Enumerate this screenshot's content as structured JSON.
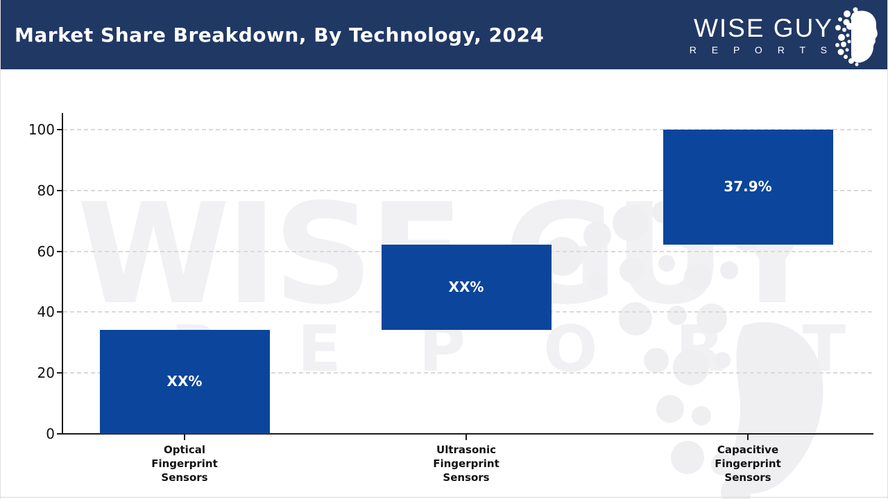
{
  "header": {
    "title": "Market Share Breakdown, By Technology, 2024",
    "logo": {
      "line1": "WISE GUY",
      "line2": "R E P O R T S"
    }
  },
  "watermark": {
    "line1": "WISE GUY",
    "line2": "R E P O R T S"
  },
  "colors": {
    "header_bg": "#203864",
    "bar": "#0b459c",
    "bar_label": "#ffffff",
    "grid": "#d9d9d9",
    "watermark": "#f1f1f4"
  },
  "chart_data": {
    "type": "bar",
    "subtype": "stacked-waterfall",
    "title": "Market Share Breakdown, By Technology, 2024",
    "xlabel": "",
    "ylabel": "",
    "ylim": [
      0,
      100
    ],
    "yticks": [
      0,
      20,
      40,
      60,
      80,
      100
    ],
    "grid": "horizontal-dashed",
    "legend": "none",
    "bars": [
      {
        "category": "Optical Fingerprint Sensors",
        "category_lines": [
          "Optical",
          "Fingerprint",
          "Sensors"
        ],
        "start": 0,
        "end": 34.2,
        "value_label": "XX%"
      },
      {
        "category": "Ultrasonic Fingerprint Sensors",
        "category_lines": [
          "Ultrasonic",
          "Fingerprint",
          "Sensors"
        ],
        "start": 34.2,
        "end": 62.1,
        "value_label": "XX%"
      },
      {
        "category": "Capacitive Fingerprint Sensors",
        "category_lines": [
          "Capacitive",
          "Fingerprint",
          "Sensors"
        ],
        "start": 62.1,
        "end": 100,
        "value_label": "37.9%"
      }
    ]
  }
}
